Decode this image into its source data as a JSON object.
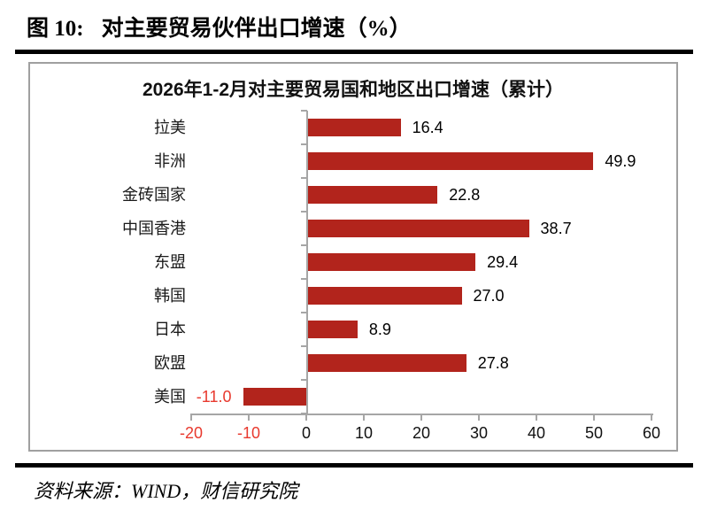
{
  "figure": {
    "label": "图 10:",
    "title": "对主要贸易伙伴出口增速（%）",
    "source": "资料来源：WIND，财信研究院"
  },
  "chart_data": {
    "type": "bar",
    "orientation": "horizontal",
    "title": "2026年1-2月对主要贸易国和地区出口增速（累计）",
    "categories": [
      "拉美",
      "非洲",
      "金砖国家",
      "中国香港",
      "东盟",
      "韩国",
      "日本",
      "欧盟",
      "美国"
    ],
    "values": [
      16.4,
      49.9,
      22.8,
      38.7,
      29.4,
      27.0,
      8.9,
      27.8,
      -11.0
    ],
    "value_labels": [
      "16.4",
      "49.9",
      "22.8",
      "38.7",
      "29.4",
      "27.0",
      "8.9",
      "27.8",
      "-11.0"
    ],
    "xlim": [
      -20,
      60
    ],
    "x_ticks": [
      -20,
      -10,
      0,
      10,
      20,
      30,
      40,
      50,
      60
    ],
    "unit": "%",
    "grid": false,
    "legend": false,
    "colors": {
      "bar": "#B2241C",
      "negative_text": "#E8392E",
      "axis": "#A6A6A6",
      "text": "#000000"
    }
  }
}
